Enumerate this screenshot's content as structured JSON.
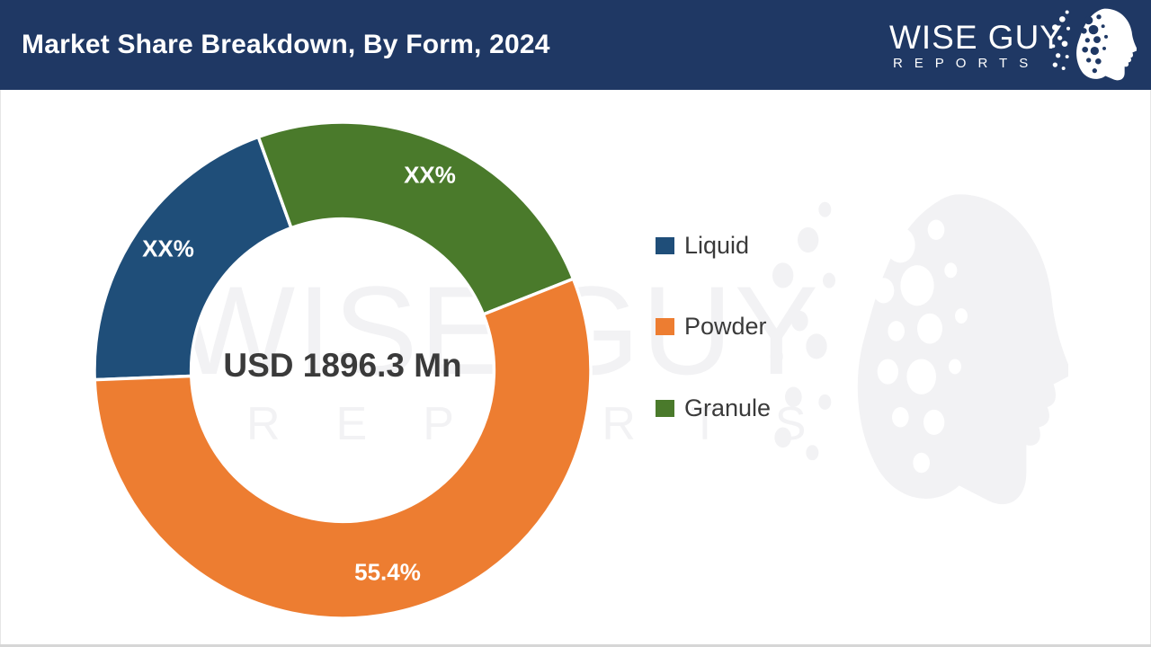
{
  "header": {
    "title": "Market Share Breakdown, By Form, 2024"
  },
  "logo": {
    "name": "WISE GUY",
    "subtitle": "REPORTS"
  },
  "watermark": {
    "line1": "WISE GUY",
    "line2": "REPORTS"
  },
  "colors": {
    "header_bg": "#1f3864",
    "liquid": "#1f4e79",
    "powder": "#ed7d31",
    "granule": "#4a7a2b",
    "text_dark": "#3a3a3a",
    "watermark": "#f2f2f4"
  },
  "chart_data": {
    "type": "pie",
    "subtype": "donut",
    "title": "Market Share Breakdown, By Form, 2024",
    "center_label": "USD 1896.3 Mn",
    "start_angle_deg_clockwise_from_top": 267.8,
    "inner_radius_ratio": 0.61,
    "legend_position": "right",
    "segments": [
      {
        "name": "Liquid",
        "display_pct": "XX%",
        "value_pct": 20.1,
        "color": "#1f4e79"
      },
      {
        "name": "Granule",
        "display_pct": "XX%",
        "value_pct": 24.5,
        "color": "#4a7a2b"
      },
      {
        "name": "Powder",
        "display_pct": "55.4%",
        "value_pct": 55.4,
        "color": "#ed7d31"
      }
    ]
  },
  "legend": {
    "items": [
      {
        "label": "Liquid",
        "color": "#1f4e79"
      },
      {
        "label": "Powder",
        "color": "#ed7d31"
      },
      {
        "label": "Granule",
        "color": "#4a7a2b"
      }
    ]
  }
}
